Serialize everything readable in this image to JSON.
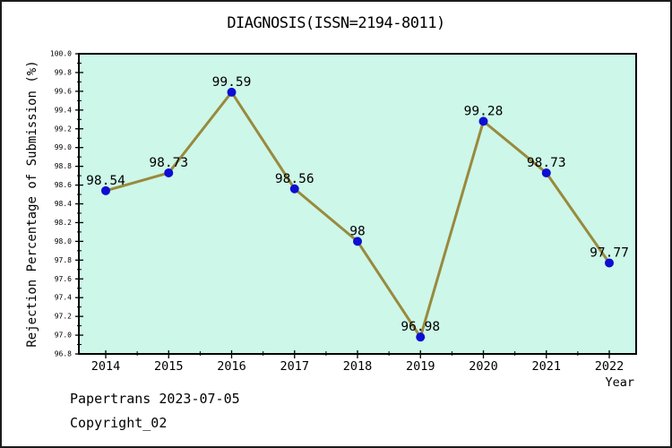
{
  "page": {
    "title": "DIAGNOSIS(ISSN=2194-8011)",
    "footer_line1": "Papertrans 2023-07-05",
    "footer_line2": "Copyright_02"
  },
  "chart_data": {
    "type": "line",
    "title": "DIAGNOSIS(ISSN=2194-8011)",
    "xlabel": "Year",
    "ylabel": "Rejection Percentage of Submission (%)",
    "categories": [
      2014,
      2015,
      2016,
      2017,
      2018,
      2019,
      2020,
      2021,
      2022
    ],
    "values": [
      98.54,
      98.73,
      99.59,
      98.56,
      98,
      96.98,
      99.28,
      98.73,
      97.77
    ],
    "point_labels": [
      "98.54",
      "98.73",
      "99.59",
      "98.56",
      "98",
      "96.98",
      "99.28",
      "98.73",
      "97.77"
    ],
    "ylim": [
      96.8,
      100.0
    ],
    "ytick_step": 0.2,
    "ytick_minor_step": 0.1,
    "xtick_minor": "half-year",
    "grid": false,
    "legend": false,
    "colors": {
      "line": "#998a3d",
      "marker": "#0d0ed2",
      "plot_background": "#cdf7e9",
      "axis": "#000000",
      "text": "#000000",
      "figure_background": "#ffffff"
    }
  }
}
